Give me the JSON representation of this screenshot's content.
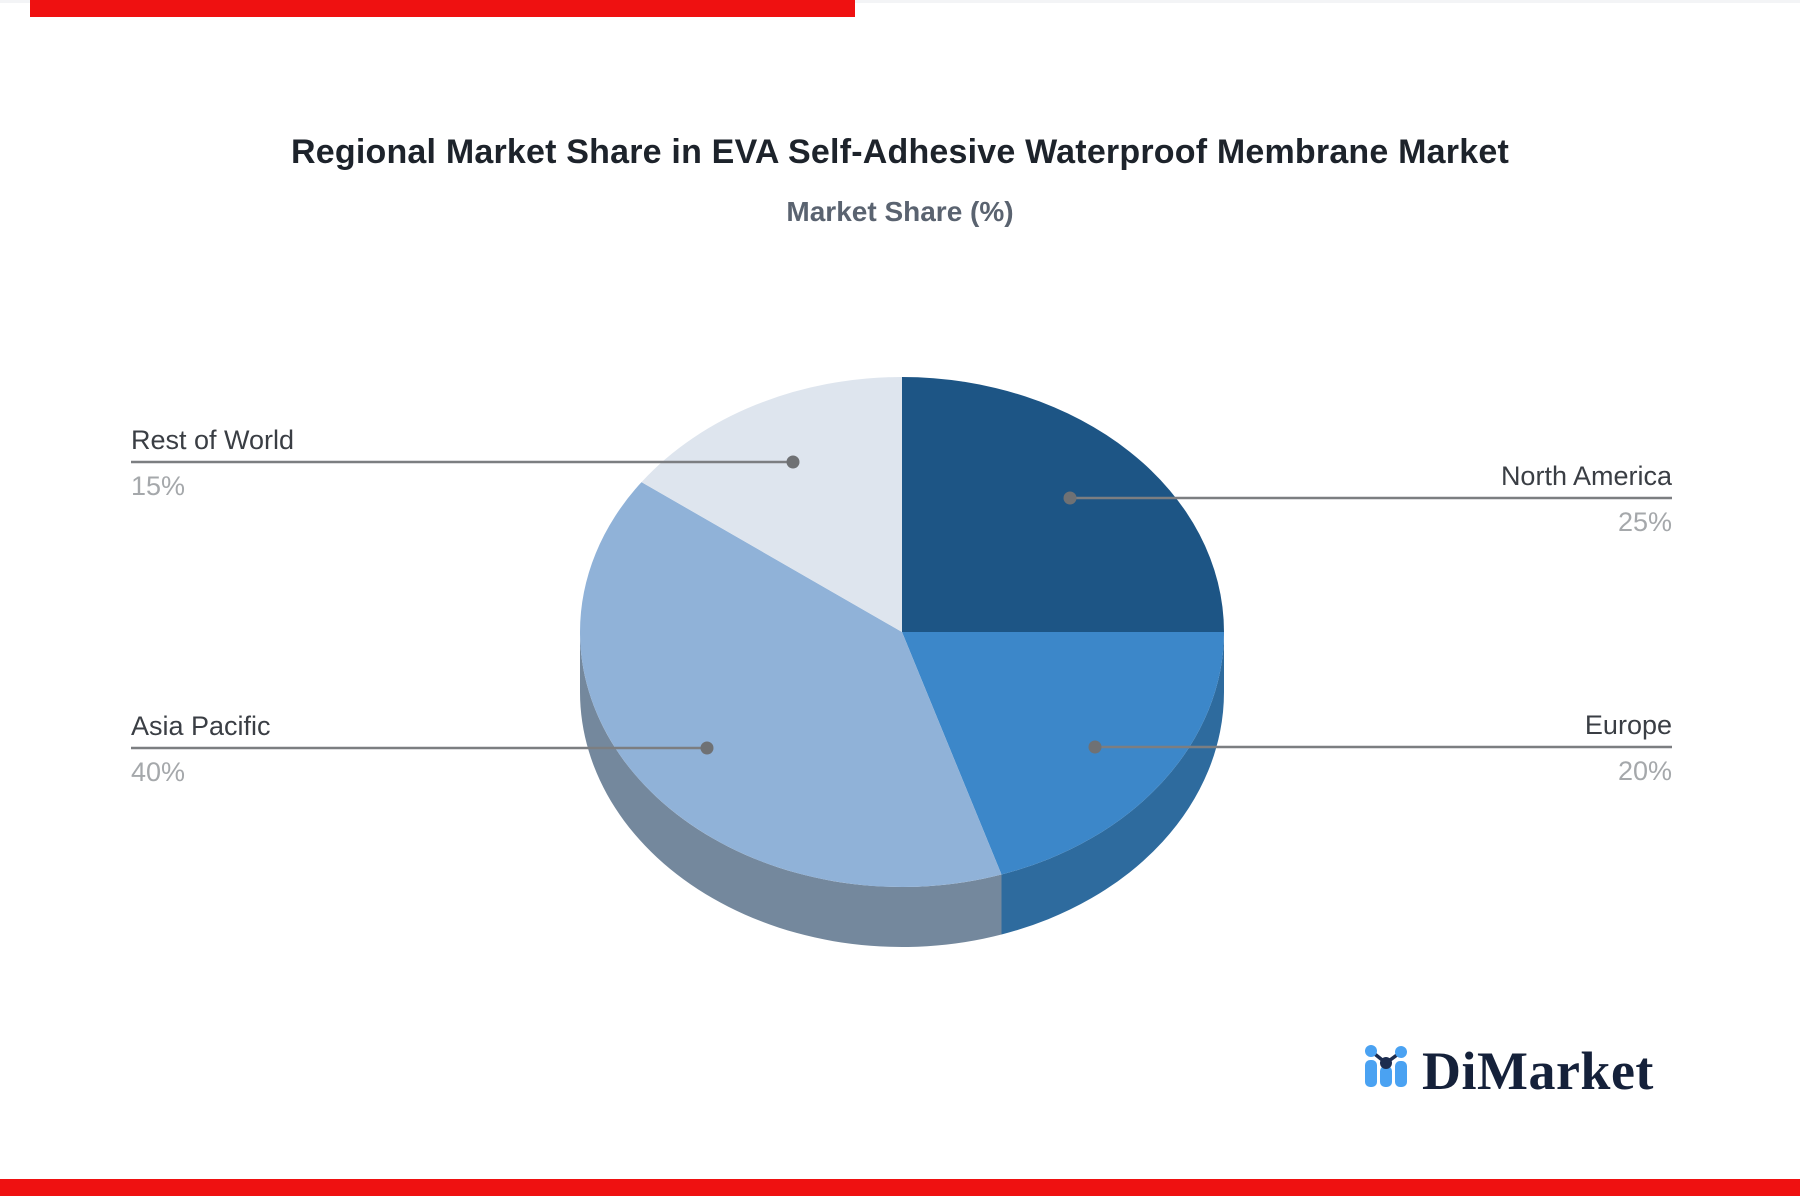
{
  "page": {
    "background": "#ffffff",
    "top_bar_color": "#ef1111",
    "bottom_bar_color": "#ef1111"
  },
  "chart_data": {
    "type": "pie",
    "style": "3d",
    "title": "Regional Market Share in EVA Self-Adhesive Waterproof Membrane Market",
    "subtitle": "Market Share (%)",
    "unit": "%",
    "start_angle": "top",
    "direction": "clockwise",
    "legend_position": "callout-labels",
    "title_color": "#1d232b",
    "subtitle_color": "#5a6370",
    "label_color": "#3a3e44",
    "value_color": "#a5a8ab",
    "callout_line_color": "#7c7e81",
    "callout_dot_color": "#6f7174",
    "slices": [
      {
        "label": "North America",
        "value": 25,
        "display": "25%",
        "color": "#1d5585",
        "side_color": "#2e6b9e"
      },
      {
        "label": "Europe",
        "value": 20,
        "display": "20%",
        "color": "#3c87c9",
        "side_color": "#2e6b9e"
      },
      {
        "label": "Asia Pacific",
        "value": 40,
        "display": "40%",
        "color": "#90b2d8",
        "side_color": "#74889d"
      },
      {
        "label": "Rest of World",
        "value": 15,
        "display": "15%",
        "color": "#dee5ee",
        "side_color": "#c3ccd8"
      }
    ]
  },
  "branding": {
    "logo_text": "DiMarket",
    "logo_color": "#15213a",
    "icon_bar_color": "#4aa2f2",
    "icon_line_color": "#1d2d50"
  }
}
